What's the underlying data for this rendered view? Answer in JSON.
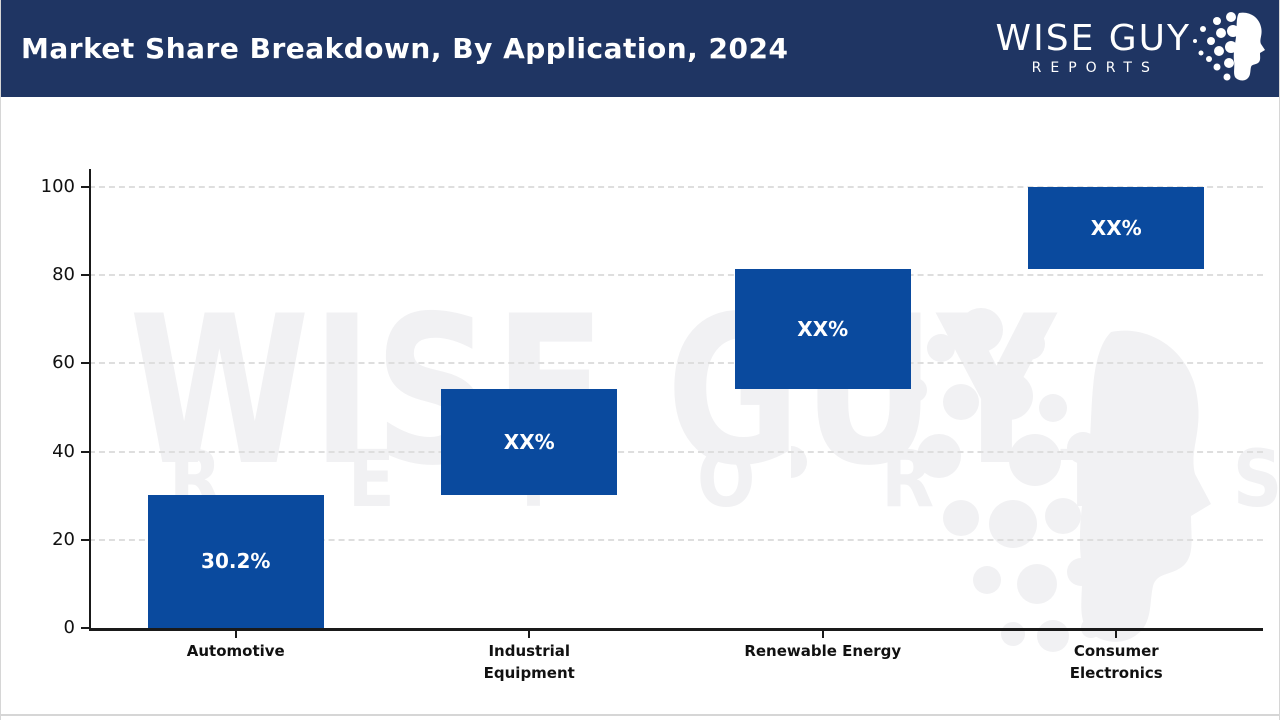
{
  "header": {
    "title": "Market Share Breakdown, By Application, 2024",
    "background_color": "#1f3563",
    "logo": {
      "wordmark": "WISE GUY",
      "subtitle": "REPORTS"
    }
  },
  "watermark": {
    "line1": "WISE GUY",
    "line2": "R E P O R T S"
  },
  "chart_data": {
    "type": "bar",
    "subtype": "waterfall-floating-bars",
    "title": "Market Share Breakdown, By Application, 2024",
    "xlabel": "",
    "ylabel": "",
    "categories": [
      "Automotive",
      "Industrial Equipment",
      "Renewable Energy",
      "Consumer Electronics"
    ],
    "category_lines": [
      [
        "Automotive"
      ],
      [
        "Industrial",
        "Equipment"
      ],
      [
        "Renewable Energy"
      ],
      [
        "Consumer",
        "Electronics"
      ]
    ],
    "segments": [
      {
        "start": 0,
        "end": 30.2,
        "label": "30.2%"
      },
      {
        "start": 30.2,
        "end": 54.3,
        "label": "XX%"
      },
      {
        "start": 54.3,
        "end": 81.3,
        "label": "XX%"
      },
      {
        "start": 81.3,
        "end": 100,
        "label": "XX%"
      }
    ],
    "yticks": [
      0,
      20,
      40,
      60,
      80,
      100
    ],
    "ylim": [
      0,
      104
    ],
    "grid": "horizontal-dashed",
    "legend": "none",
    "bar_color": "#0a4a9e",
    "bar_label_color": "#ffffff",
    "axis_color": "#1a1a1a",
    "gridline_color": "#dedede"
  }
}
